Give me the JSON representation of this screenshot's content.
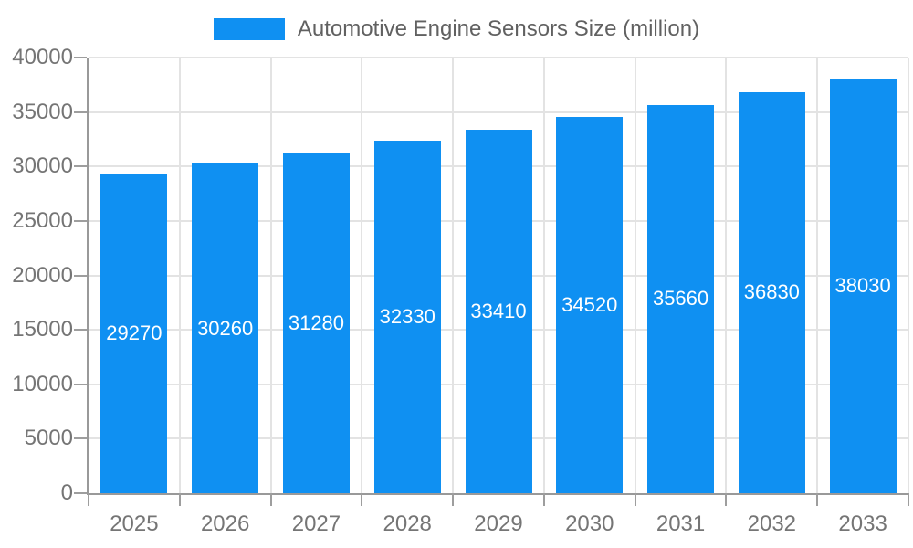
{
  "legend": {
    "label": "Automotive Engine Sensors Size (million)"
  },
  "colors": {
    "bar": "#0f90f2",
    "bar_label": "#ffffff",
    "gridline": "#e3e3e3",
    "axis_line": "#999999",
    "tick": "#9e9e9e",
    "axis_label": "#757575",
    "legend_text": "#616161"
  },
  "chart_data": {
    "type": "bar",
    "title": "Automotive Engine Sensors Size (million)",
    "categories": [
      "2025",
      "2026",
      "2027",
      "2028",
      "2029",
      "2030",
      "2031",
      "2032",
      "2033"
    ],
    "values": [
      29270,
      30260,
      31280,
      32330,
      33410,
      34520,
      35660,
      36830,
      38030
    ],
    "bar_value_labels": [
      "29270",
      "30260",
      "31280",
      "32330",
      "33410",
      "34520",
      "35660",
      "36830",
      "38030"
    ],
    "xlabel": "",
    "ylabel": "",
    "ylim": [
      0,
      40000
    ],
    "ytick_step": 5000,
    "ytick_labels": [
      "0",
      "5000",
      "10000",
      "15000",
      "20000",
      "25000",
      "30000",
      "35000",
      "40000"
    ],
    "grid": true,
    "legend_position": "top-center",
    "value_label_position": "inside-middle"
  }
}
